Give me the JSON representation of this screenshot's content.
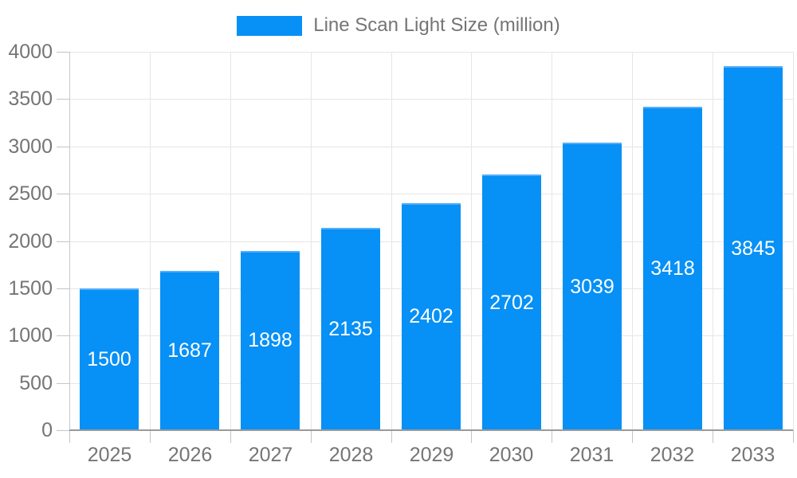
{
  "legend": {
    "label": "Line Scan Light Size (million)"
  },
  "colors": {
    "bar": "#0790f5",
    "bar_stroke": "#55aef7",
    "grid": "#e6e6e6",
    "axis_line": "#c9c9c9",
    "baseline": "#9a9a9a",
    "tick": "#c4c4c4",
    "axis_label": "#757575",
    "bar_label": "#ffffff",
    "legend_text": "#757575",
    "background": "#ffffff"
  },
  "chart_data": {
    "type": "bar",
    "title": "",
    "xlabel": "",
    "ylabel": "",
    "categories": [
      "2025",
      "2026",
      "2027",
      "2028",
      "2029",
      "2030",
      "2031",
      "2032",
      "2033"
    ],
    "series": [
      {
        "name": "Line Scan Light Size (million)",
        "values": [
          1500,
          1687,
          1898,
          2135,
          2402,
          2702,
          3039,
          3418,
          3845
        ]
      }
    ],
    "ylim": [
      0,
      4000
    ],
    "yticks": [
      0,
      500,
      1000,
      1500,
      2000,
      2500,
      3000,
      3500,
      4000
    ],
    "grid": true,
    "legend_position": "top-center",
    "value_labels": "inside-center"
  }
}
